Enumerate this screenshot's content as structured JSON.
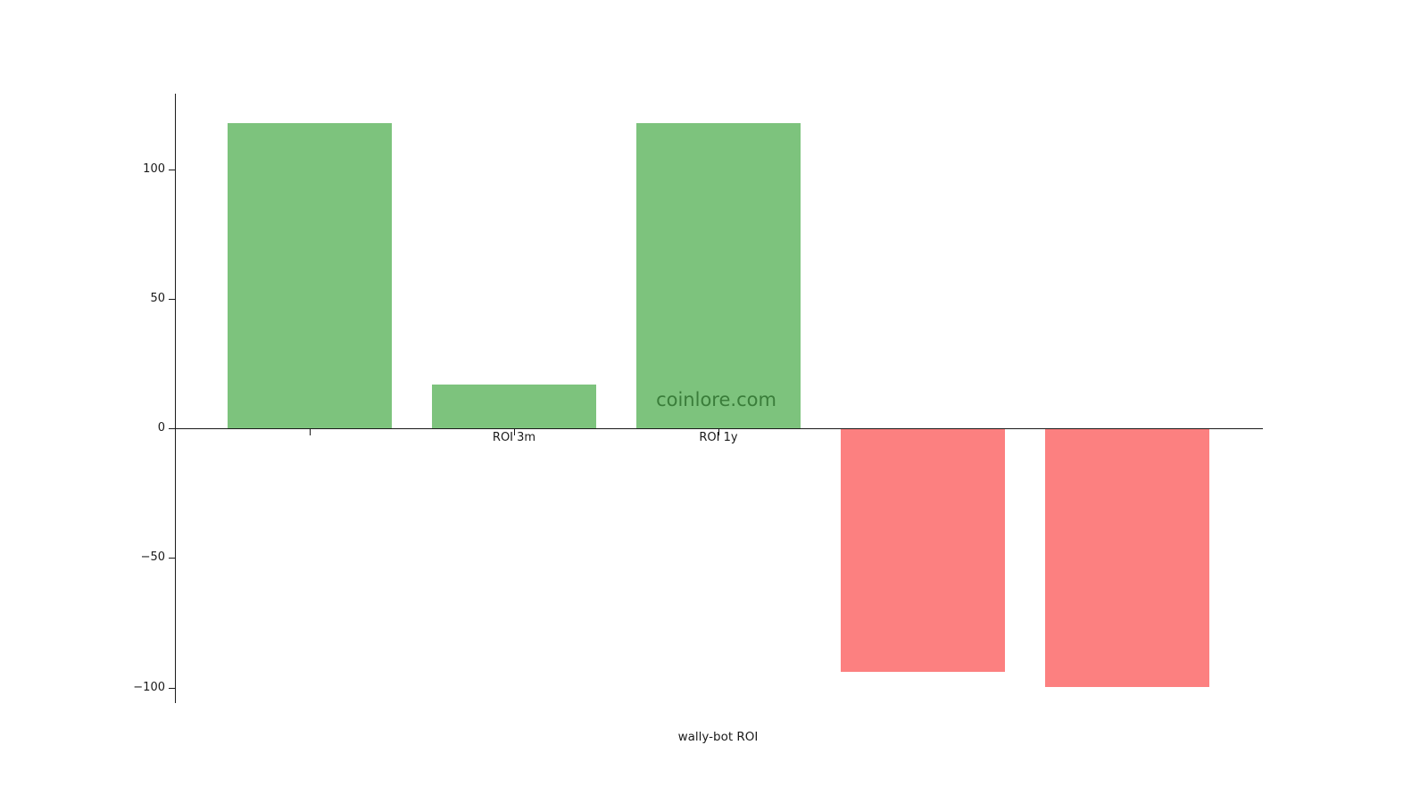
{
  "chart_data": {
    "type": "bar",
    "title": "",
    "xlabel": "wally-bot ROI",
    "ylabel": "",
    "categories": [
      "",
      "ROI 3m",
      "ROI 1y",
      "",
      ""
    ],
    "values": [
      117.9,
      16.9,
      117.9,
      -93.6,
      -99.4
    ],
    "yticks": [
      100,
      50,
      0,
      -50,
      -100
    ],
    "ylim": [
      -106,
      129
    ],
    "grid": false,
    "legend": null,
    "colors": {
      "positive_bar": "#7dc37d",
      "negative_bar": "#fc8080",
      "axis": "#1a1a1a",
      "tick_label": "#1a1a1a"
    },
    "watermark": {
      "text": "coinlore.com",
      "color": "#3a7d3a"
    }
  }
}
